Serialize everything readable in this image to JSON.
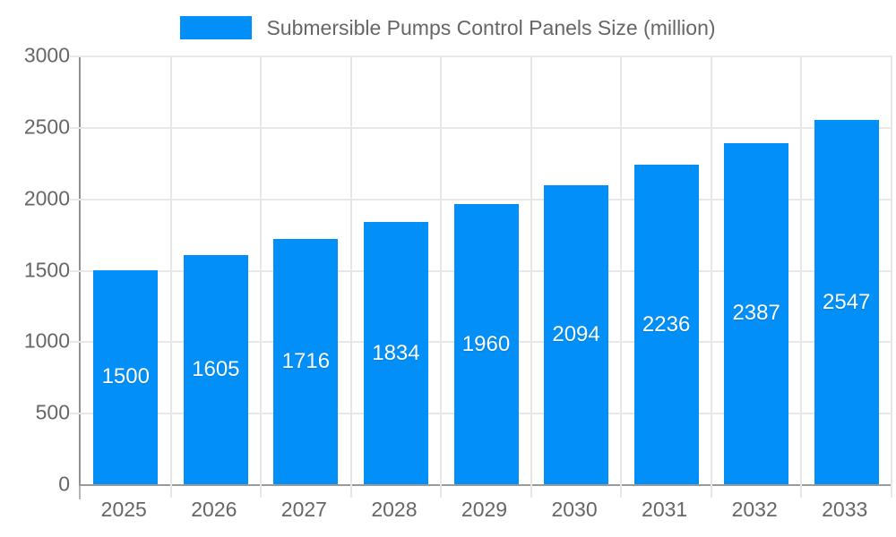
{
  "legend": {
    "label": "Submersible Pumps Control Panels Size (million)",
    "swatch_color": "#0290f8"
  },
  "chart_data": {
    "type": "bar",
    "title": "Submersible Pumps Control Panels Size (million)",
    "categories": [
      "2025",
      "2026",
      "2027",
      "2028",
      "2029",
      "2030",
      "2031",
      "2032",
      "2033"
    ],
    "values": [
      1500,
      1605,
      1716,
      1834,
      1960,
      2094,
      2236,
      2387,
      2547
    ],
    "series_name": "Submersible Pumps Control Panels Size (million)",
    "xlabel": "",
    "ylabel": "",
    "ylim": [
      0,
      3000
    ],
    "yticks": [
      0,
      500,
      1000,
      1500,
      2000,
      2500,
      3000
    ],
    "grid": true,
    "legend_position": "top",
    "bar_color": "#0290f8",
    "data_label_color": "#ffffff",
    "axis_label_color": "#666666"
  }
}
